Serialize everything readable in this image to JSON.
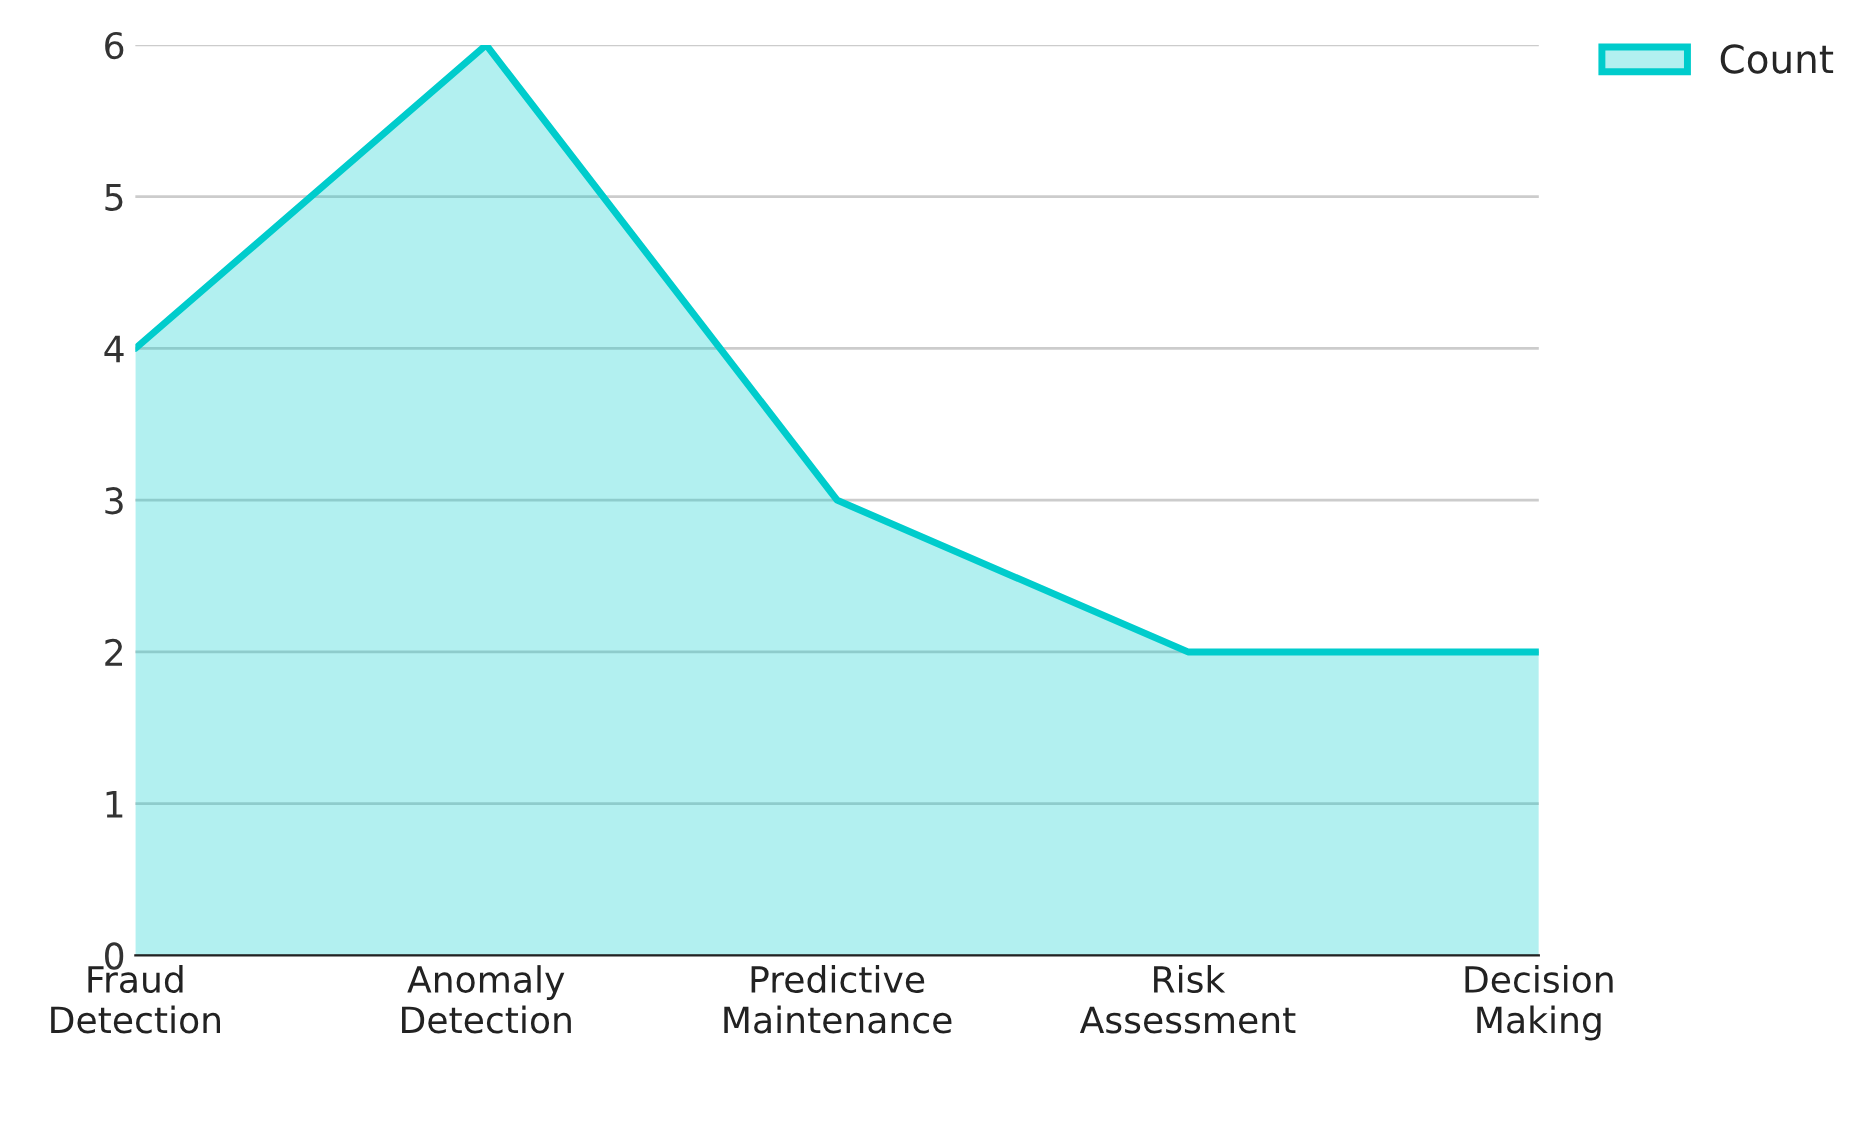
{
  "chart_data": {
    "type": "area",
    "categories": [
      "Fraud Detection",
      "Anomaly Detection",
      "Predictive Maintenance",
      "Risk Assessment",
      "Decision Making"
    ],
    "series": [
      {
        "name": "Count",
        "color": "#00cccc",
        "values": [
          4,
          6,
          3,
          2,
          2
        ]
      }
    ],
    "ylim": [
      0,
      6
    ],
    "yticks": [
      0,
      1,
      2,
      3,
      4,
      5,
      6
    ],
    "grid": "y",
    "legend": "top right"
  }
}
